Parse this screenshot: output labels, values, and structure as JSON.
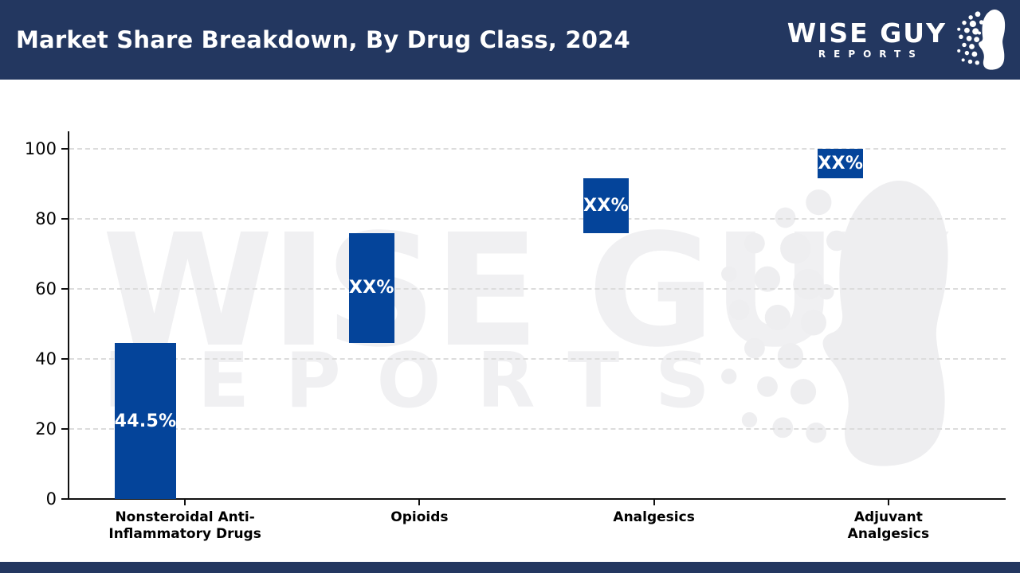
{
  "header": {
    "title": "Market Share Breakdown, By Drug Class, 2024",
    "logo": {
      "line1": "WISE GUY",
      "line2": "REPORTS"
    },
    "bg_color": "#233760"
  },
  "watermark": {
    "line1": "WISE GUY",
    "line2": "REPORTS"
  },
  "colors": {
    "navy": "#233760",
    "bar_blue": "#04449a",
    "grid_gray": "#dcdcdc",
    "watermark_gray": "#f0f0f2"
  },
  "chart_data": {
    "type": "bar",
    "subtype": "waterfall",
    "title": "Market Share Breakdown, By Drug Class, 2024",
    "categories": [
      "Nonsteroidal Anti-Inflammatory Drugs",
      "Opioids",
      "Analgesics",
      "Adjuvant Analgesics"
    ],
    "category_label_lines": [
      [
        "Nonsteroidal Anti-",
        "Inflammatory Drugs"
      ],
      [
        "Opioids"
      ],
      [
        "Analgesics"
      ],
      [
        "Adjuvant",
        "Analgesics"
      ]
    ],
    "segments": [
      {
        "start": 0,
        "end": 44.5,
        "label": "44.5%"
      },
      {
        "start": 44.5,
        "end": 76,
        "label": "XX%"
      },
      {
        "start": 76,
        "end": 91.5,
        "label": "XX%"
      },
      {
        "start": 91.5,
        "end": 100,
        "label": "XX%"
      }
    ],
    "yticks": [
      0,
      20,
      40,
      60,
      80,
      100
    ],
    "ylim": [
      0,
      100
    ],
    "xlabel": "",
    "ylabel": "",
    "grid": true,
    "gridline_style": "dashed",
    "legend": "none",
    "bar_color": "#04449a",
    "bar_label_color": "#ffffff"
  }
}
